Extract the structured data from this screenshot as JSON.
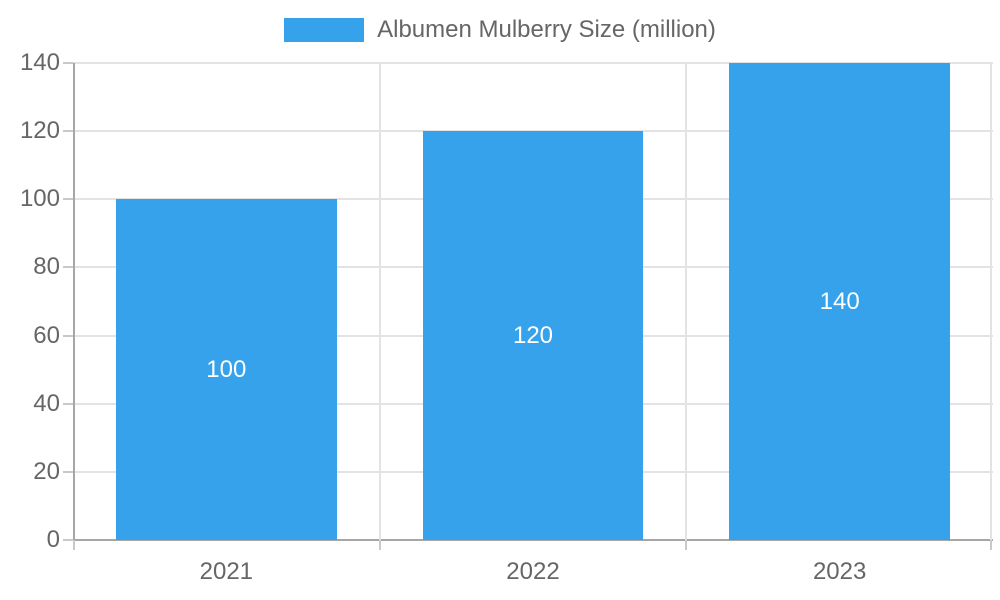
{
  "chart": {
    "background": "#ffffff",
    "legend": {
      "label": "Albumen Mulberry Size (million)"
    },
    "colors": {
      "bar": "#36A2EB",
      "grid_line": "#E3E3E3",
      "axis_line": "#A6A6A6",
      "tick_mark": "#C9C9C9",
      "axis_label": "#666666",
      "data_label": "#ffffff"
    }
  },
  "chart_data": {
    "type": "bar",
    "title": "",
    "categories": [
      "2021",
      "2022",
      "2023"
    ],
    "series": [
      {
        "name": "Albumen Mulberry Size (million)",
        "values": [
          100,
          120,
          140
        ]
      }
    ],
    "data_labels": [
      "100",
      "120",
      "140"
    ],
    "xlabel": "",
    "ylabel": "",
    "ylim": [
      0,
      140
    ],
    "y_ticks": [
      0,
      20,
      40,
      60,
      80,
      100,
      120,
      140
    ],
    "grid": true,
    "legend_position": "top-center",
    "bar_fraction_of_category": 0.72
  }
}
